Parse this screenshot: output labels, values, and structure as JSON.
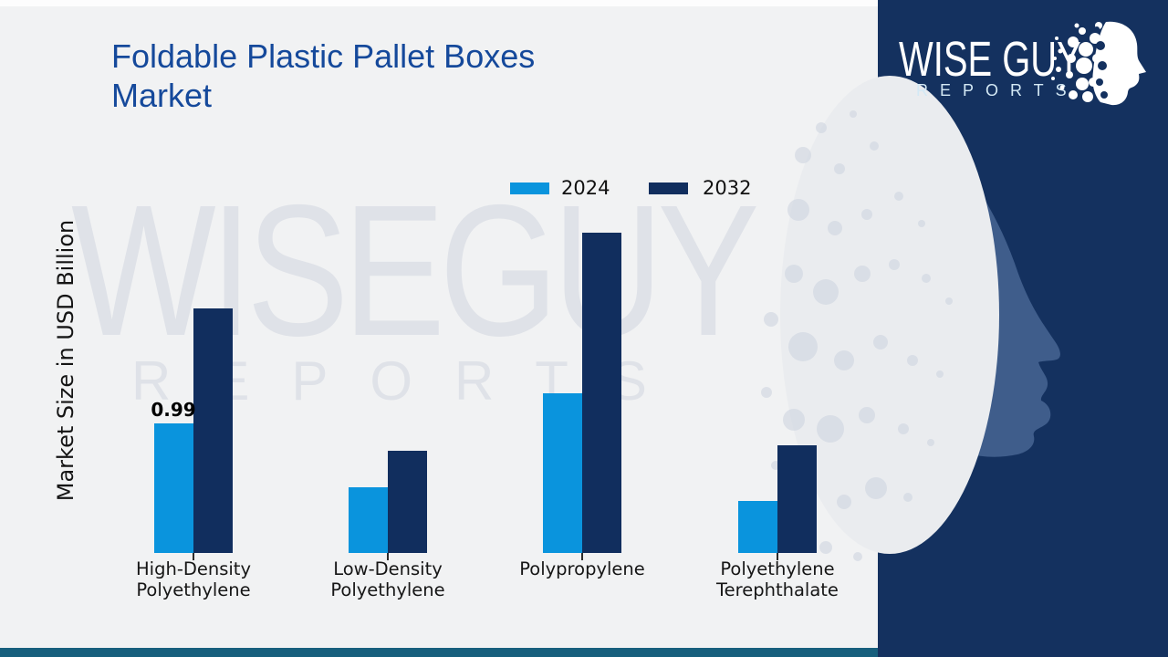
{
  "header": {
    "title_lines": [
      "Foldable Plastic Pallet Boxes",
      "Market"
    ]
  },
  "brand_logo": {
    "name": "WISE GUY",
    "subtitle": "REPORTS"
  },
  "watermark": {
    "line1": "WISEGUY",
    "line2": "REPORTS"
  },
  "chart_data": {
    "type": "bar",
    "title": "Foldable Plastic Pallet Boxes Market",
    "xlabel": "",
    "ylabel": "Market Size in USD Billion",
    "categories": [
      "High-Density Polyethylene",
      "Low-Density Polyethylene",
      "Polypropylene",
      "Polyethylene Terephthalate"
    ],
    "category_label_lines": [
      [
        "High-Density",
        "Polyethylene"
      ],
      [
        "Low-Density",
        "Polyethylene"
      ],
      [
        "Polypropylene"
      ],
      [
        "Polyethylene",
        "Terephthalate"
      ]
    ],
    "series": [
      {
        "name": "2024",
        "color": "#0a94dd",
        "values": [
          0.99,
          0.5,
          1.22,
          0.4
        ]
      },
      {
        "name": "2032",
        "color": "#112e5e",
        "values": [
          1.87,
          0.78,
          2.45,
          0.82
        ]
      }
    ],
    "bar_value_labels": [
      {
        "series_index": 0,
        "category_index": 0,
        "text": "0.99"
      }
    ],
    "ylim": [
      0,
      2.6
    ],
    "grid": false,
    "legend_position": "top"
  },
  "colors": {
    "accent_2024": "#0a94dd",
    "accent_2032": "#112e5e",
    "title_blue": "#15499b",
    "panel_navy": "#14315f",
    "footer_teal": "#175f7d",
    "watermark_gray": "#dfe2e8",
    "face_silhouette": "#3f5d8b",
    "circle_fill": "#eaecef"
  }
}
